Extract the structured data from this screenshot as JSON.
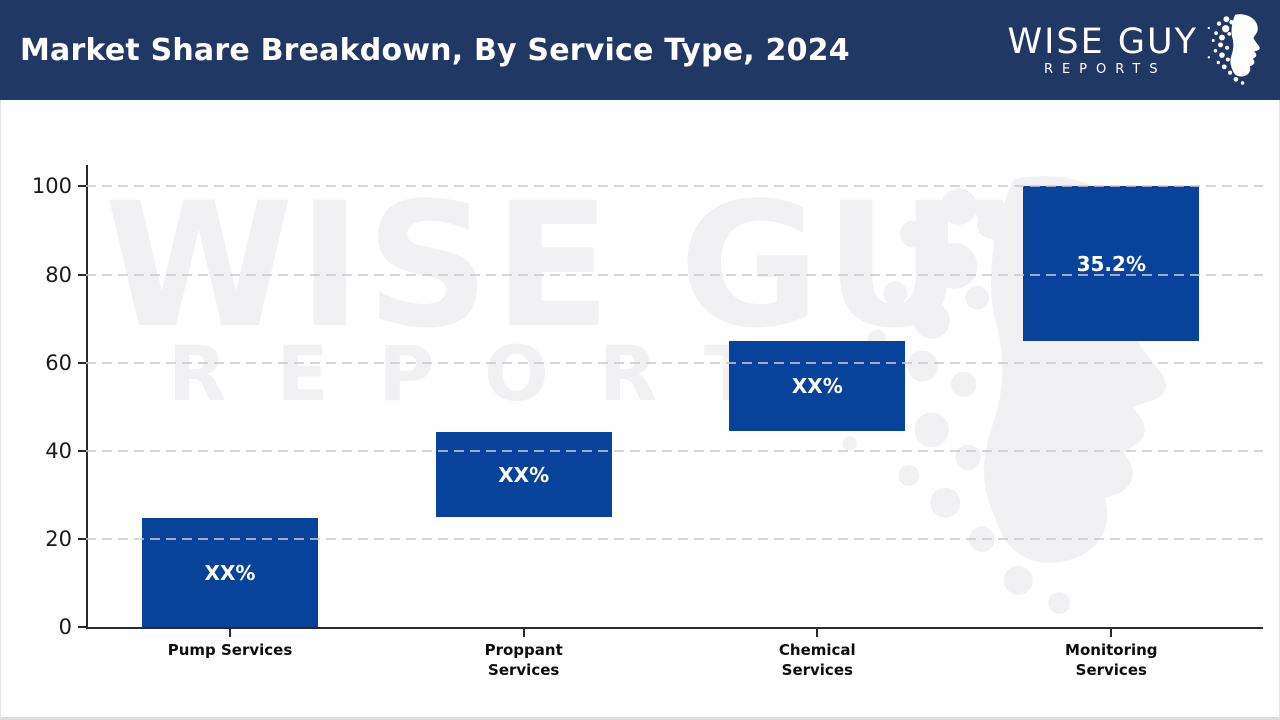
{
  "header": {
    "title": "Market Share Breakdown, By Service Type, 2024",
    "logo": {
      "line1": "WISE GUY",
      "line2": "REPORTS"
    },
    "bg_color": "#1f3864"
  },
  "watermark": {
    "line1": "WISE GUY",
    "line2": "REPORTS"
  },
  "chart_data": {
    "type": "bar",
    "subtype": "floating-waterfall",
    "title": "Market Share Breakdown, By Service Type, 2024",
    "categories": [
      "Pump Services",
      "Proppant Services",
      "Chemical Services",
      "Monitoring Services"
    ],
    "segments": [
      {
        "category": "Pump Services",
        "base": 0,
        "top": 24.7,
        "label": "XX%"
      },
      {
        "category": "Proppant Services",
        "base": 24.9,
        "top": 44.2,
        "label": "XX%"
      },
      {
        "category": "Chemical Services",
        "base": 44.4,
        "top": 64.9,
        "label": "XX%"
      },
      {
        "category": "Monitoring Services",
        "base": 64.8,
        "top": 100,
        "label": "35.2%"
      }
    ],
    "yticks": [
      0,
      20,
      40,
      60,
      80,
      100
    ],
    "ylim": [
      0,
      107
    ],
    "grid": "dashed-horizontal-over-bars",
    "legend": "none",
    "bar_color": "#07439a",
    "bar_label_color": "#ffffff",
    "axis_color": "#2b2b2b",
    "grid_color": "#dcdcdc"
  }
}
